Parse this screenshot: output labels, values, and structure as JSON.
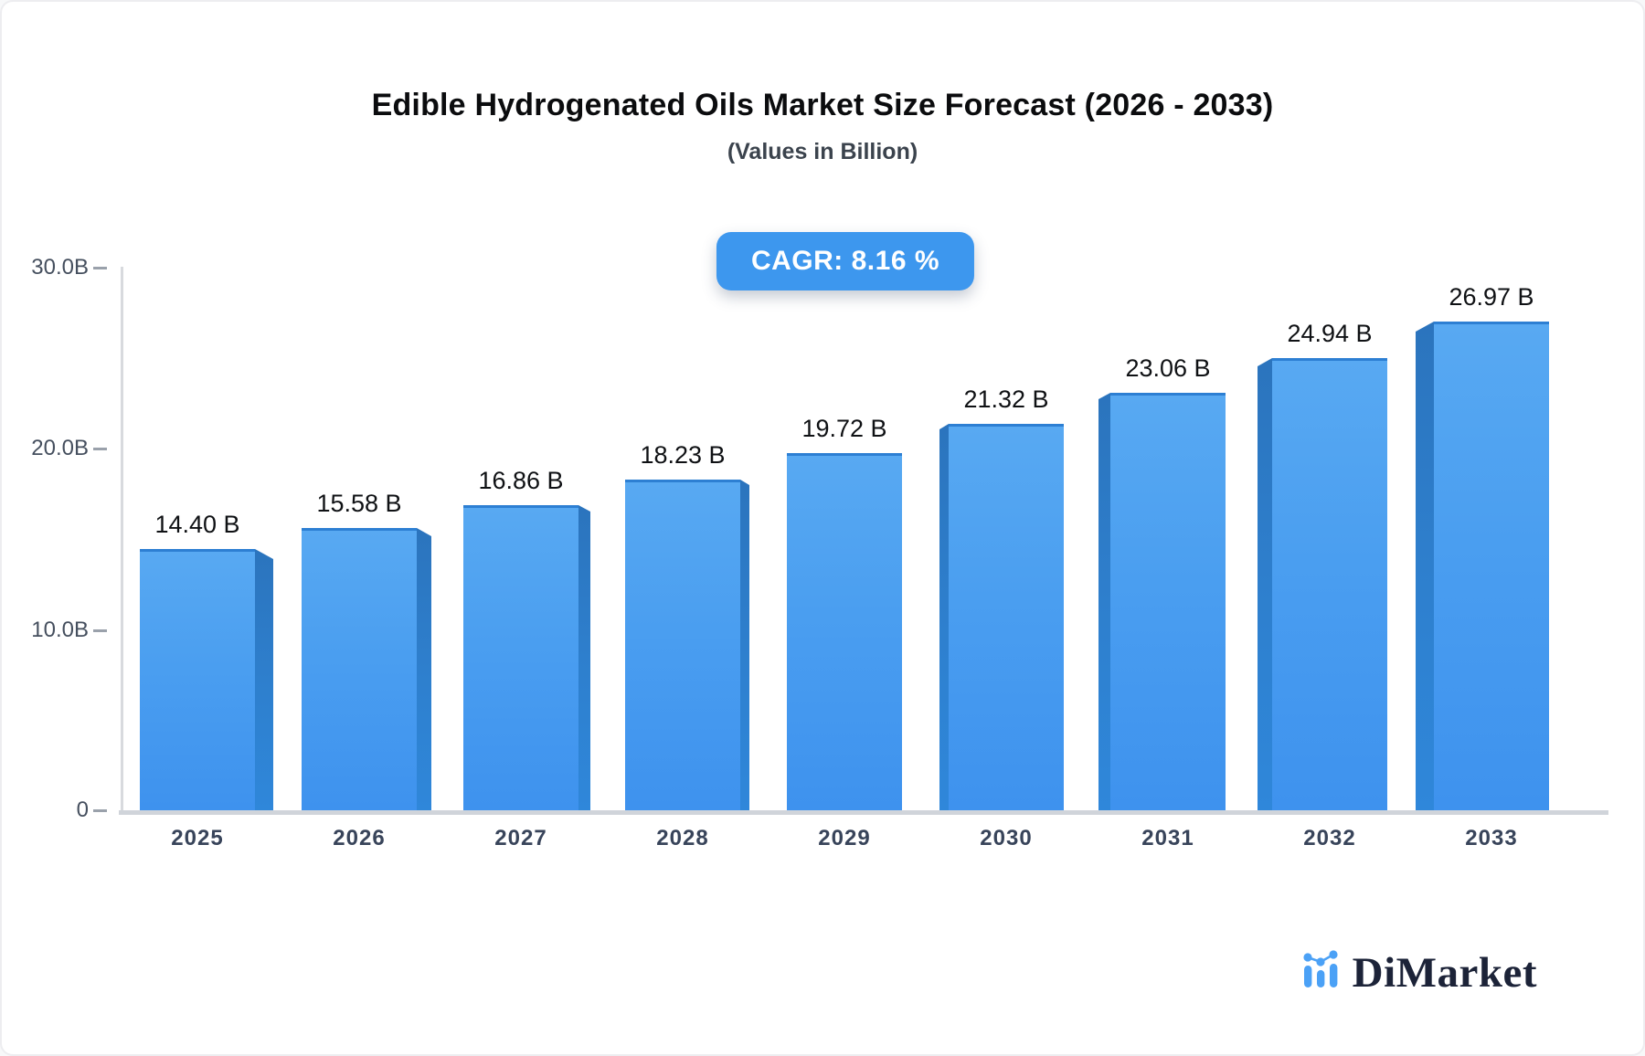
{
  "title": "Edible Hydrogenated Oils Market Size Forecast (2026 - 2033)",
  "subtitle": "(Values in Billion)",
  "badge": {
    "label": "CAGR: 8.16 %"
  },
  "brand": {
    "name": "DiMarket",
    "icon": "bar-line-chart-icon"
  },
  "colors": {
    "badge_bg": "#3d97ee",
    "bar_front_top": "#58a9f2",
    "bar_front_bottom": "#3e92ee",
    "bar_top_edge": "#2d7fd3",
    "bar_side": "#2d7cc6",
    "axis_line": "#d0d4da",
    "tick_text": "#454f5e",
    "year_text": "#38445a",
    "value_text": "#0f1114",
    "logo_blue": "#4ba1f6",
    "logo_text": "#1c2338"
  },
  "chart_data": {
    "type": "bar",
    "style": "3d-perspective-bars",
    "title": "Edible Hydrogenated Oils Market Size Forecast (2026 - 2033)",
    "subtitle": "(Values in Billion)",
    "cagr": "8.16 %",
    "unit": "Billion",
    "categories": [
      "2025",
      "2026",
      "2027",
      "2028",
      "2029",
      "2030",
      "2031",
      "2032",
      "2033"
    ],
    "values": [
      14.4,
      15.58,
      16.86,
      18.23,
      19.72,
      21.32,
      23.06,
      24.94,
      26.97
    ],
    "value_labels": [
      "14.40 B",
      "15.58 B",
      "16.86 B",
      "18.23 B",
      "19.72 B",
      "21.32 B",
      "23.06 B",
      "24.94 B",
      "26.97 B"
    ],
    "yticks": [
      "30.0B",
      "20.0B",
      "10.0B",
      "0"
    ],
    "ylim": [
      0,
      30
    ],
    "grid": false,
    "legend": false
  }
}
